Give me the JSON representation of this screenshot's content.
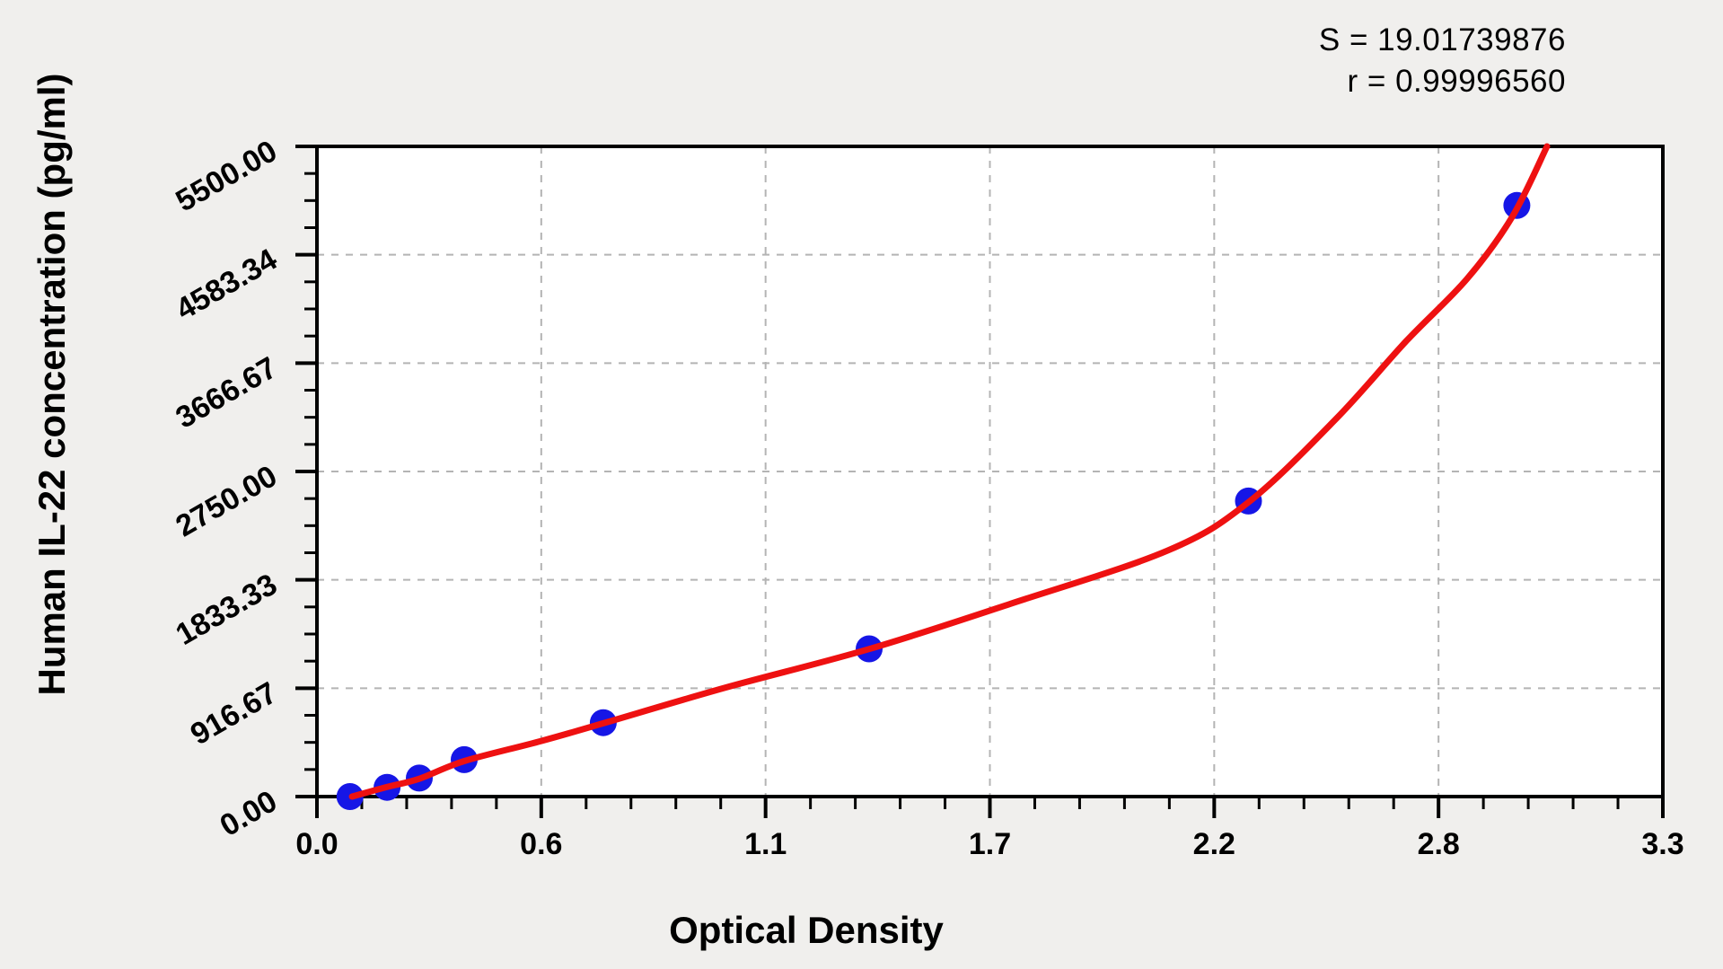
{
  "colors": {
    "background": "#f0efed",
    "plot_background": "#ffffff",
    "axis": "#000000",
    "grid": "#b4b4b4",
    "curve": "#ee1111",
    "points": "#1616e6",
    "text": "#000000"
  },
  "chart_data": {
    "type": "scatter",
    "title": "",
    "xlabel": "Optical Density",
    "ylabel": "Human IL-22 concentration (pg/ml)",
    "xlim": [
      0,
      3.3
    ],
    "ylim": [
      0,
      5500
    ],
    "x_tick_labels": [
      "0.0",
      "0.6",
      "1.1",
      "1.7",
      "2.2",
      "2.8",
      "3.3"
    ],
    "y_tick_labels": [
      "0.00",
      "916.67",
      "1833.33",
      "2750.00",
      "3666.67",
      "4583.34",
      "5500.00"
    ],
    "x_minor_divisions": 5,
    "y_minor_divisions": 4,
    "grid": "dashed-major",
    "legend": "none",
    "annotations": {
      "s_label": "S = 19.01739876",
      "r_label": "r = 0.99996560"
    },
    "series": [
      {
        "name": "standard-points",
        "type": "scatter",
        "color": "#1616e6",
        "marker_radius_px": 15,
        "points": [
          [
            0.081,
            0
          ],
          [
            0.172,
            78.13
          ],
          [
            0.251,
            156.25
          ],
          [
            0.361,
            312.5
          ],
          [
            0.702,
            625
          ],
          [
            1.354,
            1250
          ],
          [
            2.284,
            2500
          ],
          [
            2.942,
            5000
          ]
        ]
      },
      {
        "name": "fitted-curve",
        "type": "line",
        "color": "#ee1111",
        "stroke_px": 7,
        "points": [
          [
            0.086,
            0
          ],
          [
            0.17,
            80
          ],
          [
            0.25,
            150
          ],
          [
            0.361,
            300
          ],
          [
            0.55,
            470
          ],
          [
            0.702,
            620
          ],
          [
            1.0,
            920
          ],
          [
            1.354,
            1248
          ],
          [
            1.7,
            1630
          ],
          [
            2.085,
            2080
          ],
          [
            2.284,
            2490
          ],
          [
            2.5,
            3200
          ],
          [
            2.67,
            3850
          ],
          [
            2.82,
            4380
          ],
          [
            2.93,
            4900
          ],
          [
            3.016,
            5500
          ]
        ]
      }
    ]
  }
}
